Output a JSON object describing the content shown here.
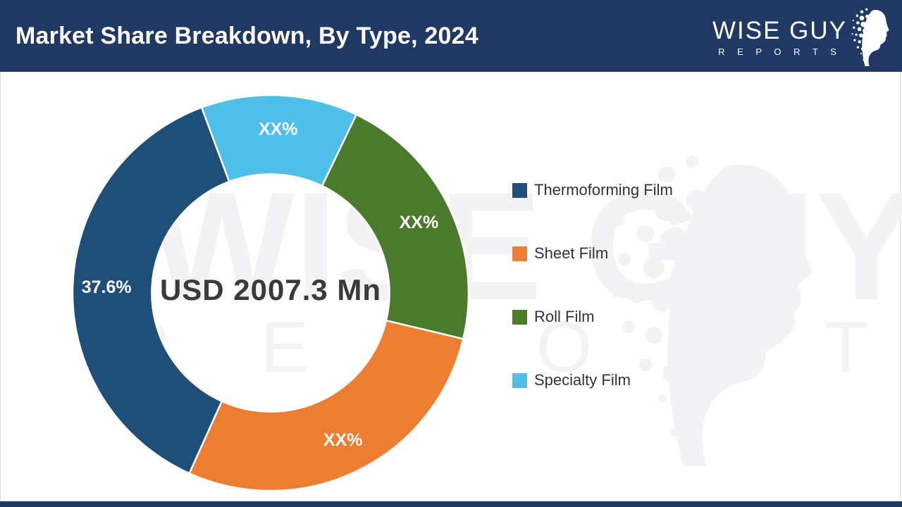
{
  "header": {
    "title": "Market Share Breakdown, By Type, 2024",
    "logo": {
      "line1": "WISE GUY",
      "line2": "R E P O R T S"
    }
  },
  "watermark": {
    "line1": "WISE GUY",
    "line2": "R E P O R T S"
  },
  "chart_data": {
    "type": "pie",
    "subtype": "donut",
    "title": "Market Share Breakdown, By Type, 2024",
    "center_label": "USD 2007.3 Mn",
    "start_angle_deg": -20.4,
    "clockwise": true,
    "inner_radius_ratio": 0.6,
    "legend_position": "right",
    "segments": [
      {
        "name": "Specialty Film",
        "value": 12.8,
        "label": "XX%",
        "color": "#4FBEE8"
      },
      {
        "name": "Roll Film",
        "value": 21.6,
        "label": "XX%",
        "color": "#4C7A2D"
      },
      {
        "name": "Sheet Film",
        "value": 28.0,
        "label": "XX%",
        "color": "#ED7D31"
      },
      {
        "name": "Thermoforming Film",
        "value": 37.6,
        "label": "37.6%",
        "color": "#1F4E79"
      }
    ],
    "legend": {
      "items": [
        {
          "label": "Thermoforming Film",
          "color": "#1F4E79"
        },
        {
          "label": "Sheet Film",
          "color": "#ED7D31"
        },
        {
          "label": "Roll Film",
          "color": "#4C7A2D"
        },
        {
          "label": "Specialty Film",
          "color": "#4FBEE8"
        }
      ]
    }
  },
  "colors": {
    "header_bg": "#1F3864",
    "footer_bg": "#1F3864",
    "center_text": "#3A3A3A",
    "legend_text": "#333333",
    "watermark": "#F3F3F5",
    "frame_border": "#D8D8D8"
  }
}
